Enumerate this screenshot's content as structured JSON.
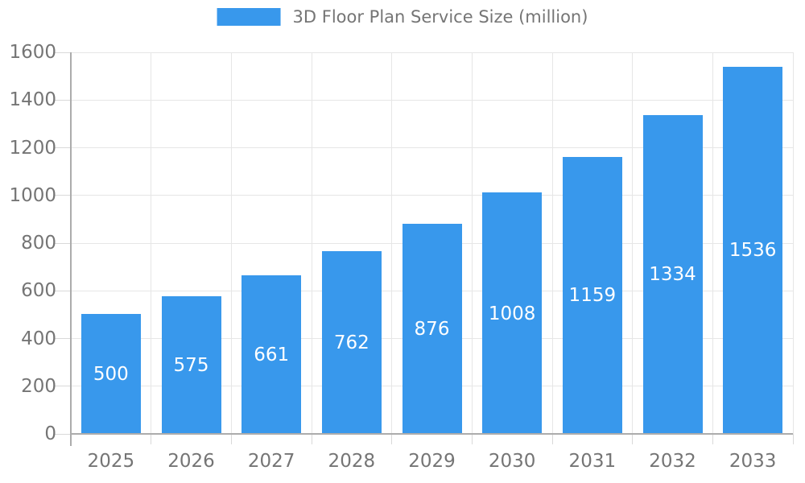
{
  "chart_data": {
    "type": "bar",
    "title": "3D Floor Plan Service Size (million)",
    "categories": [
      "2025",
      "2026",
      "2027",
      "2028",
      "2029",
      "2030",
      "2031",
      "2032",
      "2033"
    ],
    "series": [
      {
        "name": "3D Floor Plan Service Size (million)",
        "values": [
          500,
          575,
          661,
          762,
          876,
          1008,
          1159,
          1334,
          1536
        ]
      }
    ],
    "xlabel": "",
    "ylabel": "",
    "ylim": [
      0,
      1600
    ],
    "y_ticks": [
      0,
      200,
      400,
      600,
      800,
      1000,
      1200,
      1400,
      1600
    ],
    "grid": true,
    "legend_position": "top",
    "bar_value_labels": "inside-center",
    "colors": {
      "bar": "#3898EC",
      "bar_label": "#FFFFFF",
      "axis_text": "#757575",
      "grid": "#E6E6E6",
      "axis_line": "#ACACAC",
      "tick": "#D9D9D9",
      "background": "#FFFFFF"
    }
  }
}
